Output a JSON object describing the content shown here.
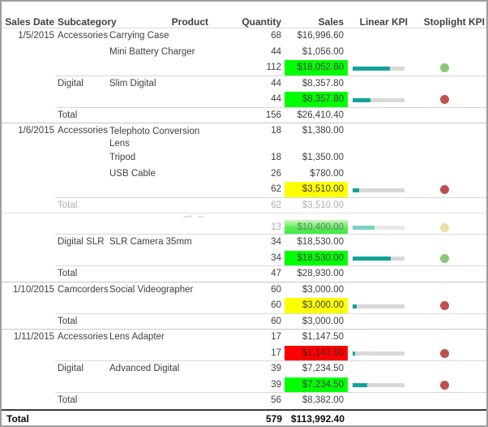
{
  "columns": [
    "Sales Date",
    "Subcategory",
    "Product",
    "Quantity",
    "Sales",
    "Linear KPI",
    "Stoplight KPI"
  ],
  "grand_total": {
    "label": "Total",
    "quantity": "579",
    "sales": "$113,992.40"
  },
  "colors": {
    "sales_good": "#00ff00",
    "sales_warn": "#ffff00",
    "sales_bad": "#ff0000",
    "gauge_fill": "#12a39c",
    "gauge_track": "#d8d8d8",
    "stoplight_green": "#8cc878",
    "stoplight_red": "#c0504d",
    "stoplight_yellow": "#e9e2a2",
    "text": "#404040",
    "faded_text": "#b0b0b0"
  },
  "rows": [
    {
      "type": "product",
      "date": "1/5/2015",
      "subcategory": "Accessories",
      "product": "Carrying Case",
      "quantity": "68",
      "sales": "$16,996.60"
    },
    {
      "type": "product",
      "product": "Mini Battery Charger",
      "quantity": "44",
      "sales": "$1,056.00"
    },
    {
      "type": "subtotal",
      "quantity": "112",
      "sales": "$18,052.60",
      "sales_bg": "lime",
      "kpi_percent": 72,
      "stoplight": "green",
      "separator": "subgroup"
    },
    {
      "type": "product",
      "subcategory": "Digital",
      "product": "Slim Digital",
      "quantity": "44",
      "sales": "$8,357.80"
    },
    {
      "type": "subtotal",
      "quantity": "44",
      "sales": "$8,357.80",
      "sales_bg": "lime",
      "kpi_percent": 34,
      "stoplight": "red",
      "separator": "subgroup"
    },
    {
      "type": "total",
      "label": "Total",
      "quantity": "156",
      "sales": "$26,410.40",
      "separator": "group"
    },
    {
      "type": "product",
      "date": "1/6/2015",
      "subcategory": "Accessories",
      "product": "Telephoto Conversion Lens",
      "wrap": true,
      "quantity": "18",
      "sales": "$1,380.00"
    },
    {
      "type": "product",
      "product": "Tripod",
      "quantity": "18",
      "sales": "$1,350.00"
    },
    {
      "type": "product",
      "product": "USB Cable",
      "quantity": "26",
      "sales": "$780.00"
    },
    {
      "type": "subtotal",
      "quantity": "62",
      "sales": "$3,510.00",
      "sales_bg": "yellow",
      "kpi_percent": 12,
      "stoplight": "red",
      "separator": "subgroup"
    },
    {
      "type": "total",
      "label": "Total",
      "quantity": "62",
      "sales": "$3,510.00",
      "faded": true,
      "separator": "group-faded"
    },
    {
      "type": "ghost-gap"
    },
    {
      "type": "subtotal",
      "quantity": "13",
      "sales": "$10,400.00",
      "sales_bg": "lime-faded",
      "kpi_percent": 42,
      "kpi_faded": true,
      "stoplight": "yellow",
      "faded": true,
      "ghost": true,
      "separator": "subgroup"
    },
    {
      "type": "product",
      "subcategory": "Digital SLR",
      "product": "SLR Camera 35mm",
      "quantity": "34",
      "sales": "$18,530.00"
    },
    {
      "type": "subtotal",
      "quantity": "34",
      "sales": "$18,530.00",
      "sales_bg": "lime",
      "kpi_percent": 73,
      "stoplight": "green",
      "separator": "subgroup"
    },
    {
      "type": "total",
      "label": "Total",
      "quantity": "47",
      "sales": "$28,930.00",
      "separator": "group"
    },
    {
      "type": "product",
      "date": "1/10/2015",
      "subcategory": "Camcorders",
      "product": "Social Videographer",
      "quantity": "60",
      "sales": "$3,000.00"
    },
    {
      "type": "subtotal",
      "quantity": "60",
      "sales": "$3,000.00",
      "sales_bg": "yellow",
      "kpi_percent": 8,
      "stoplight": "red",
      "separator": "subgroup"
    },
    {
      "type": "total",
      "label": "Total",
      "quantity": "60",
      "sales": "$3,000.00",
      "separator": "group"
    },
    {
      "type": "product",
      "date": "1/11/2015",
      "subcategory": "Accessories",
      "product": "Lens Adapter",
      "quantity": "17",
      "sales": "$1,147.50"
    },
    {
      "type": "subtotal",
      "quantity": "17",
      "sales": "$1,147.50",
      "sales_bg": "red",
      "kpi_percent": 4,
      "stoplight": "red",
      "separator": "subgroup"
    },
    {
      "type": "product",
      "subcategory": "Digital",
      "product": "Advanced Digital",
      "quantity": "39",
      "sales": "$7,234.50"
    },
    {
      "type": "subtotal",
      "quantity": "39",
      "sales": "$7,234.50",
      "sales_bg": "lime",
      "kpi_percent": 28,
      "stoplight": "red",
      "separator": "subgroup"
    },
    {
      "type": "total",
      "label": "Total",
      "quantity": "56",
      "sales": "$8,382.00"
    }
  ]
}
